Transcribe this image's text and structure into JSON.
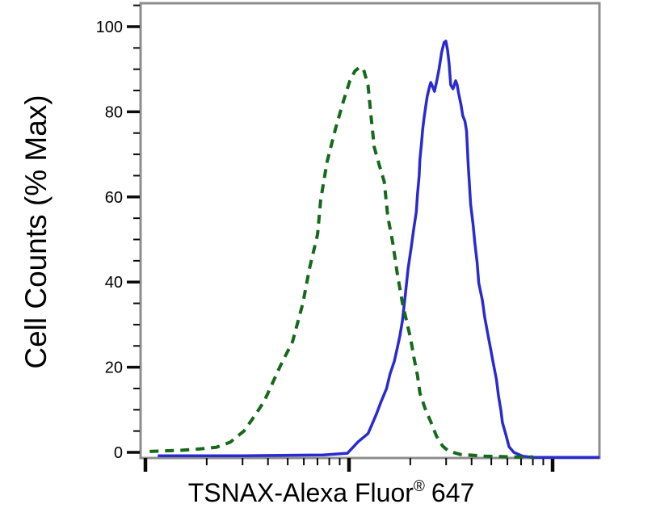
{
  "figure": {
    "ylabel": "Cell Counts (% Max)",
    "xlabel_prefix": "TSNAX-Alexa Fluor",
    "xlabel_registered": "®",
    "xlabel_suffix": "647"
  },
  "colors": {
    "axis_border": "#8c8c8c",
    "tick": "#0a0a0a",
    "text": "#000000",
    "green_dashed": "#15691a",
    "blue_solid": "#2a2ad2"
  },
  "chart_data": {
    "type": "line",
    "title": "",
    "xlabel": "TSNAX-Alexa Fluor® 647",
    "ylabel": "Cell Counts (% Max)",
    "x_scale": "log10",
    "x_range": [
      0.95,
      170
    ],
    "ylim": [
      -1.5,
      105.5
    ],
    "grid": false,
    "legend": null,
    "y_major_ticks": [
      0,
      20,
      40,
      60,
      80,
      100
    ],
    "y_minor_step": 5,
    "y_minor_max": 105,
    "x_major_ticks": [
      1,
      10,
      100
    ],
    "x_minor_pattern": [
      2,
      3,
      4,
      5,
      6,
      7,
      8,
      9
    ],
    "series": [
      {
        "name": "green-dashed-control",
        "style": "dashed",
        "color": "#15691a",
        "points": [
          [
            1.05,
            0.2
          ],
          [
            1.51,
            0.5
          ],
          [
            1.85,
            0.8
          ],
          [
            2.23,
            1.2
          ],
          [
            2.61,
            2.4
          ],
          [
            3.05,
            5.0
          ],
          [
            3.43,
            8.5
          ],
          [
            3.83,
            12.0
          ],
          [
            4.6,
            20.3
          ],
          [
            5.28,
            26.0
          ],
          [
            5.94,
            35.1
          ],
          [
            6.4,
            43.3
          ],
          [
            7.01,
            51.2
          ],
          [
            7.26,
            59.4
          ],
          [
            7.81,
            68.3
          ],
          [
            8.57,
            75.9
          ],
          [
            9.39,
            82.5
          ],
          [
            10.1,
            87.3
          ],
          [
            10.7,
            89.6
          ],
          [
            11.3,
            90.5
          ],
          [
            11.8,
            89.9
          ],
          [
            12.4,
            86.3
          ],
          [
            12.9,
            77.8
          ],
          [
            13.3,
            71.7
          ],
          [
            14.1,
            67.4
          ],
          [
            14.9,
            63.6
          ],
          [
            15.5,
            55.4
          ],
          [
            16.4,
            49.3
          ],
          [
            17.3,
            41.7
          ],
          [
            18.3,
            35.1
          ],
          [
            19.2,
            30.7
          ],
          [
            20.1,
            26.6
          ],
          [
            20.8,
            22.4
          ],
          [
            21.7,
            18.0
          ],
          [
            22.3,
            13.9
          ],
          [
            23.6,
            10.4
          ],
          [
            25.2,
            7.2
          ],
          [
            26.9,
            3.8
          ],
          [
            28.8,
            1.5
          ],
          [
            30.8,
            0.3
          ],
          [
            35.2,
            -0.5
          ],
          [
            46.4,
            -0.9
          ],
          [
            67.0,
            -1.1
          ],
          [
            80.4,
            -1.1
          ]
        ]
      },
      {
        "name": "blue-solid-tsnax",
        "style": "solid",
        "color": "#2a2ad2",
        "points": [
          [
            1.15,
            -0.8
          ],
          [
            3.0,
            -0.8
          ],
          [
            7.45,
            -0.6
          ],
          [
            9.83,
            -0.2
          ],
          [
            11.1,
            2.5
          ],
          [
            12.4,
            4.4
          ],
          [
            12.9,
            6.3
          ],
          [
            13.6,
            8.9
          ],
          [
            14.4,
            12.0
          ],
          [
            15.3,
            15.0
          ],
          [
            15.9,
            18.4
          ],
          [
            16.7,
            21.4
          ],
          [
            17.3,
            24.7
          ],
          [
            17.8,
            27.5
          ],
          [
            18.3,
            30.9
          ],
          [
            18.9,
            37.0
          ],
          [
            19.5,
            43.1
          ],
          [
            20.2,
            48.0
          ],
          [
            20.8,
            52.6
          ],
          [
            21.4,
            56.5
          ],
          [
            21.7,
            60.7
          ],
          [
            22.1,
            64.9
          ],
          [
            22.3,
            68.9
          ],
          [
            22.7,
            72.5
          ],
          [
            23.0,
            75.9
          ],
          [
            23.4,
            78.7
          ],
          [
            23.8,
            81.2
          ],
          [
            24.2,
            83.5
          ],
          [
            24.7,
            85.4
          ],
          [
            25.2,
            86.9
          ],
          [
            25.8,
            85.8
          ],
          [
            26.3,
            84.8
          ],
          [
            27.0,
            87.3
          ],
          [
            27.7,
            90.1
          ],
          [
            28.5,
            93.9
          ],
          [
            29.3,
            96.3
          ],
          [
            29.9,
            96.6
          ],
          [
            30.5,
            94.5
          ],
          [
            31.0,
            91.5
          ],
          [
            31.6,
            86.3
          ],
          [
            32.4,
            85.4
          ],
          [
            33.4,
            87.3
          ],
          [
            34.0,
            86.3
          ],
          [
            34.5,
            84.5
          ],
          [
            35.5,
            81.6
          ],
          [
            36.2,
            79.1
          ],
          [
            37.1,
            77.8
          ],
          [
            37.8,
            75.5
          ],
          [
            38.5,
            67.7
          ],
          [
            39.6,
            58.2
          ],
          [
            40.7,
            53.5
          ],
          [
            41.5,
            49.3
          ],
          [
            42.6,
            44.6
          ],
          [
            43.4,
            39.8
          ],
          [
            45.2,
            35.7
          ],
          [
            46.4,
            31.7
          ],
          [
            48.2,
            27.5
          ],
          [
            49.6,
            24.3
          ],
          [
            50.9,
            21.4
          ],
          [
            53.0,
            17.1
          ],
          [
            54.2,
            13.3
          ],
          [
            55.7,
            9.9
          ],
          [
            56.7,
            7.0
          ],
          [
            58.9,
            4.2
          ],
          [
            61.1,
            1.3
          ],
          [
            64.5,
            0.0
          ],
          [
            71.3,
            -0.9
          ],
          [
            80.4,
            -1.2
          ],
          [
            116,
            -1.2
          ],
          [
            170,
            -1.2
          ]
        ]
      }
    ]
  }
}
